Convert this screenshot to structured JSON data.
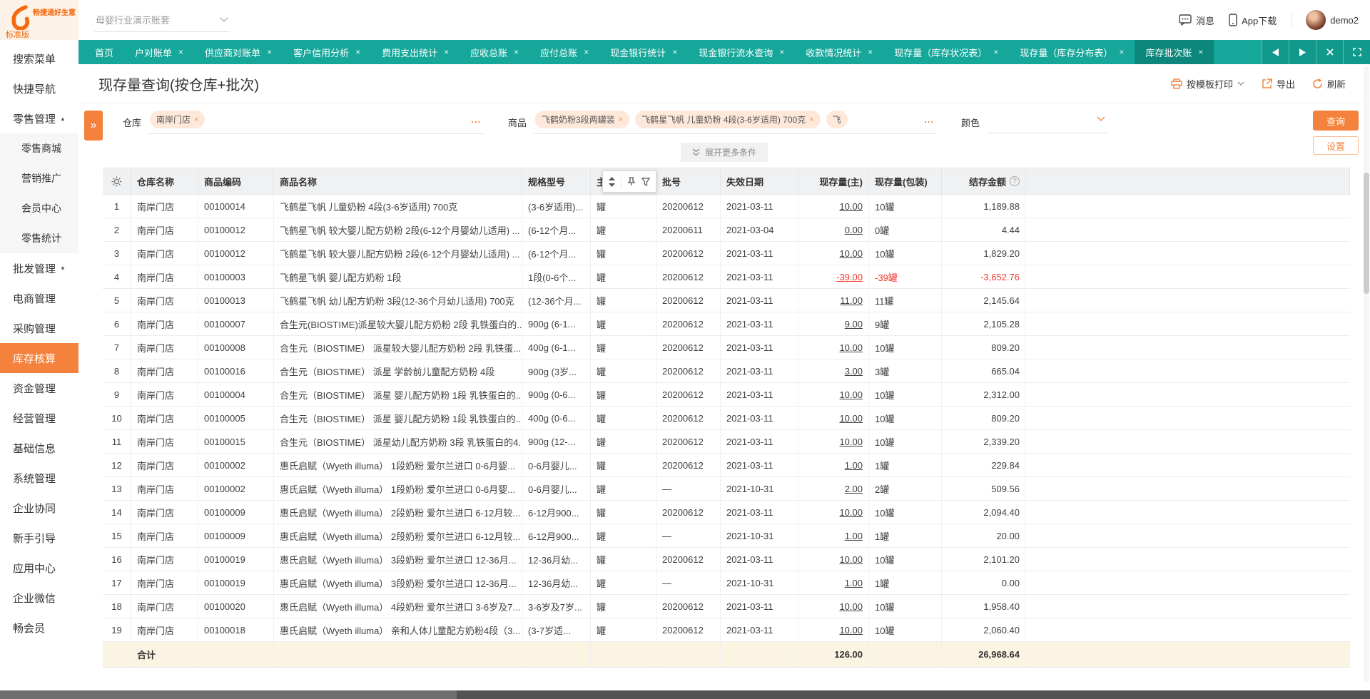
{
  "brand": {
    "logo_text": "畅捷通好生意",
    "edition": "标准版"
  },
  "header": {
    "account": "母婴行业演示账套",
    "messages": "消息",
    "app_download": "App下载",
    "username": "demo2"
  },
  "tabs": {
    "items": [
      {
        "label": "首页",
        "closable": false,
        "active": false
      },
      {
        "label": "户对账单",
        "closable": true,
        "active": false
      },
      {
        "label": "供应商对账单",
        "closable": true,
        "active": false
      },
      {
        "label": "客户信用分析",
        "closable": true,
        "active": false
      },
      {
        "label": "费用支出统计",
        "closable": true,
        "active": false
      },
      {
        "label": "应收总账",
        "closable": true,
        "active": false
      },
      {
        "label": "应付总账",
        "closable": true,
        "active": false
      },
      {
        "label": "现金银行统计",
        "closable": true,
        "active": false
      },
      {
        "label": "现金银行流水查询",
        "closable": true,
        "active": false
      },
      {
        "label": "收款情况统计",
        "closable": true,
        "active": false
      },
      {
        "label": "现存量（库存状况表）",
        "closable": true,
        "active": false
      },
      {
        "label": "现存量（库存分布表）",
        "closable": true,
        "active": false
      },
      {
        "label": "库存批次账",
        "closable": true,
        "active": true
      }
    ]
  },
  "sidebar": {
    "items": [
      {
        "label": "搜索菜单"
      },
      {
        "label": "快捷导航"
      },
      {
        "label": "零售管理",
        "arrow": "up"
      },
      {
        "label": "零售商城",
        "sub": true
      },
      {
        "label": "营销推广",
        "sub": true
      },
      {
        "label": "会员中心",
        "sub": true
      },
      {
        "label": "零售统计",
        "sub": true
      },
      {
        "label": "批发管理",
        "arrow": "down"
      },
      {
        "label": "电商管理"
      },
      {
        "label": "采购管理"
      },
      {
        "label": "库存核算",
        "active": true
      },
      {
        "label": "资金管理"
      },
      {
        "label": "经营管理"
      },
      {
        "label": "基础信息"
      },
      {
        "label": "系统管理"
      },
      {
        "label": "企业协同"
      },
      {
        "label": "新手引导"
      },
      {
        "label": "应用中心"
      },
      {
        "label": "企业微信"
      },
      {
        "label": "畅会员"
      }
    ]
  },
  "page": {
    "title": "现存量查询(按仓库+批次)",
    "tools": {
      "print": "按模板打印",
      "export": "导出",
      "refresh": "刷新"
    }
  },
  "filters": {
    "warehouse_label": "仓库",
    "warehouse_tags": [
      "南岸门店"
    ],
    "product_label": "商品",
    "product_tags": [
      "飞鹤奶粉3段两罐装",
      "飞鹤星飞帆 儿童奶粉 4段(3-6岁适用) 700克",
      "飞"
    ],
    "color_label": "颜色",
    "ellipsis": "...",
    "more": "展开更多条件",
    "search_btn": "查询",
    "settings_btn": "设置"
  },
  "table": {
    "columns": [
      "仓库名称",
      "商品编码",
      "商品名称",
      "规格型号",
      "主",
      "批号",
      "失效日期",
      "现存量(主)",
      "现存量(包装)",
      "结存金额"
    ],
    "rows": [
      {
        "no": "1",
        "wh": "南岸门店",
        "code": "00100014",
        "name": "飞鹤星飞帆 儿童奶粉 4段(3-6岁适用) 700克",
        "spec": "(3-6岁适用)...",
        "unit": "罐",
        "batch": "20200612",
        "expiry": "2021-03-11",
        "qty": "10.00",
        "pkg": "10罐",
        "amount": "1,189.88",
        "neg": false
      },
      {
        "no": "2",
        "wh": "南岸门店",
        "code": "00100012",
        "name": "飞鹤星飞帆 较大婴儿配方奶粉 2段(6-12个月婴幼儿适用) ...",
        "spec": "(6-12个月...",
        "unit": "罐",
        "batch": "20200611",
        "expiry": "2021-03-04",
        "qty": "0.00",
        "pkg": "0罐",
        "amount": "4.44",
        "neg": false
      },
      {
        "no": "3",
        "wh": "南岸门店",
        "code": "00100012",
        "name": "飞鹤星飞帆 较大婴儿配方奶粉 2段(6-12个月婴幼儿适用) ...",
        "spec": "(6-12个月...",
        "unit": "罐",
        "batch": "20200612",
        "expiry": "2021-03-11",
        "qty": "10.00",
        "pkg": "10罐",
        "amount": "1,829.20",
        "neg": false
      },
      {
        "no": "4",
        "wh": "南岸门店",
        "code": "00100003",
        "name": "飞鹤星飞帆 婴儿配方奶粉 1段",
        "spec": "1段(0-6个...",
        "unit": "罐",
        "batch": "20200612",
        "expiry": "2021-03-11",
        "qty": "-39.00",
        "pkg": "-39罐",
        "amount": "-3,652.76",
        "neg": true
      },
      {
        "no": "5",
        "wh": "南岸门店",
        "code": "00100013",
        "name": "飞鹤星飞帆 幼儿配方奶粉 3段(12-36个月幼儿适用) 700克",
        "spec": "(12-36个月...",
        "unit": "罐",
        "batch": "20200612",
        "expiry": "2021-03-11",
        "qty": "11.00",
        "pkg": "11罐",
        "amount": "2,145.64",
        "neg": false
      },
      {
        "no": "6",
        "wh": "南岸门店",
        "code": "00100007",
        "name": "合生元(BIOSTIME)派星较大婴儿配方奶粉 2段 乳铁蛋白的...",
        "spec": "900g (6-1...",
        "unit": "罐",
        "batch": "20200612",
        "expiry": "2021-03-11",
        "qty": "9.00",
        "pkg": "9罐",
        "amount": "2,105.28",
        "neg": false
      },
      {
        "no": "7",
        "wh": "南岸门店",
        "code": "00100008",
        "name": "合生元（BIOSTIME） 派星较大婴儿配方奶粉 2段 乳铁蛋...",
        "spec": "400g (6-1...",
        "unit": "罐",
        "batch": "20200612",
        "expiry": "2021-03-11",
        "qty": "10.00",
        "pkg": "10罐",
        "amount": "809.20",
        "neg": false
      },
      {
        "no": "8",
        "wh": "南岸门店",
        "code": "00100016",
        "name": "合生元（BIOSTIME） 派星 学龄前儿童配方奶粉 4段",
        "spec": "900g (3岁...",
        "unit": "罐",
        "batch": "20200612",
        "expiry": "2021-03-11",
        "qty": "3.00",
        "pkg": "3罐",
        "amount": "665.04",
        "neg": false
      },
      {
        "no": "9",
        "wh": "南岸门店",
        "code": "00100004",
        "name": "合生元（BIOSTIME） 派星 婴儿配方奶粉 1段 乳铁蛋白的...",
        "spec": "900g (0-6...",
        "unit": "罐",
        "batch": "20200612",
        "expiry": "2021-03-11",
        "qty": "10.00",
        "pkg": "10罐",
        "amount": "2,312.00",
        "neg": false
      },
      {
        "no": "10",
        "wh": "南岸门店",
        "code": "00100005",
        "name": "合生元（BIOSTIME） 派星 婴儿配方奶粉 1段 乳铁蛋白的...",
        "spec": "400g (0-6...",
        "unit": "罐",
        "batch": "20200612",
        "expiry": "2021-03-11",
        "qty": "10.00",
        "pkg": "10罐",
        "amount": "809.20",
        "neg": false
      },
      {
        "no": "11",
        "wh": "南岸门店",
        "code": "00100015",
        "name": "合生元（BIOSTIME） 派星幼儿配方奶粉 3段 乳铁蛋白的4...",
        "spec": "900g (12-...",
        "unit": "罐",
        "batch": "20200612",
        "expiry": "2021-03-11",
        "qty": "10.00",
        "pkg": "10罐",
        "amount": "2,339.20",
        "neg": false
      },
      {
        "no": "12",
        "wh": "南岸门店",
        "code": "00100002",
        "name": "惠氏启赋（Wyeth illuma） 1段奶粉 爱尔兰进口 0-6月婴...",
        "spec": "0-6月婴儿...",
        "unit": "罐",
        "batch": "20200612",
        "expiry": "2021-03-11",
        "qty": "1.00",
        "pkg": "1罐",
        "amount": "229.84",
        "neg": false
      },
      {
        "no": "13",
        "wh": "南岸门店",
        "code": "00100002",
        "name": "惠氏启赋（Wyeth illuma） 1段奶粉 爱尔兰进口 0-6月婴...",
        "spec": "0-6月婴儿...",
        "unit": "罐",
        "batch": "—",
        "expiry": "2021-10-31",
        "qty": "2.00",
        "pkg": "2罐",
        "amount": "509.56",
        "neg": false
      },
      {
        "no": "14",
        "wh": "南岸门店",
        "code": "00100009",
        "name": "惠氏启赋（Wyeth illuma） 2段奶粉 爱尔兰进口 6-12月较...",
        "spec": "6-12月900...",
        "unit": "罐",
        "batch": "20200612",
        "expiry": "2021-03-11",
        "qty": "10.00",
        "pkg": "10罐",
        "amount": "2,094.40",
        "neg": false
      },
      {
        "no": "15",
        "wh": "南岸门店",
        "code": "00100009",
        "name": "惠氏启赋（Wyeth illuma） 2段奶粉 爱尔兰进口 6-12月较...",
        "spec": "6-12月900...",
        "unit": "罐",
        "batch": "—",
        "expiry": "2021-10-31",
        "qty": "1.00",
        "pkg": "1罐",
        "amount": "20.00",
        "neg": false
      },
      {
        "no": "16",
        "wh": "南岸门店",
        "code": "00100019",
        "name": "惠氏启赋（Wyeth illuma） 3段奶粉 爱尔兰进口 12-36月...",
        "spec": "12-36月幼...",
        "unit": "罐",
        "batch": "20200612",
        "expiry": "2021-03-11",
        "qty": "10.00",
        "pkg": "10罐",
        "amount": "2,101.20",
        "neg": false
      },
      {
        "no": "17",
        "wh": "南岸门店",
        "code": "00100019",
        "name": "惠氏启赋（Wyeth illuma） 3段奶粉 爱尔兰进口 12-36月...",
        "spec": "12-36月幼...",
        "unit": "罐",
        "batch": "—",
        "expiry": "2021-10-31",
        "qty": "1.00",
        "pkg": "1罐",
        "amount": "0.00",
        "neg": false
      },
      {
        "no": "18",
        "wh": "南岸门店",
        "code": "00100020",
        "name": "惠氏启赋（Wyeth illuma） 4段奶粉 爱尔兰进口 3-6岁及7...",
        "spec": "3-6岁及7岁...",
        "unit": "罐",
        "batch": "20200612",
        "expiry": "2021-03-11",
        "qty": "10.00",
        "pkg": "10罐",
        "amount": "1,958.40",
        "neg": false
      },
      {
        "no": "19",
        "wh": "南岸门店",
        "code": "00100018",
        "name": "惠氏启赋（Wyeth illuma） 亲和人体儿童配方奶粉4段（3...",
        "spec": "(3-7岁适...",
        "unit": "罐",
        "batch": "20200612",
        "expiry": "2021-03-11",
        "qty": "10.00",
        "pkg": "10罐",
        "amount": "2,060.40",
        "neg": false
      }
    ],
    "footer": {
      "label": "合计",
      "qty_main": "126.00",
      "amount": "26,968.64"
    }
  },
  "colors": {
    "accent_orange": "#f5823c",
    "teal": "#15a79a",
    "teal_active": "#0d877b",
    "negative_red": "#f23a2c",
    "footer_bg": "#fcf4e3"
  }
}
